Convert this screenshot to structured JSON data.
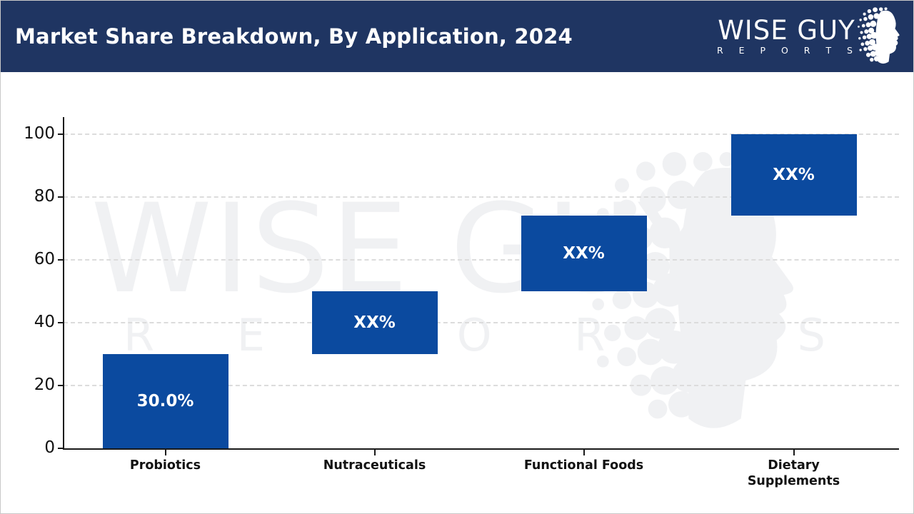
{
  "header": {
    "title": "Market Share Breakdown, By Application, 2024",
    "logo_line1": "WISE GUY",
    "logo_line2": "R E P O R T S"
  },
  "watermark": {
    "line1": "WISE GUY",
    "line2": "R E P O R T S"
  },
  "colors": {
    "header_bg": "#1f3562",
    "bar_blue": "#0b4a9f",
    "bar_label": "#ffffff",
    "watermark_gray": "#f0f1f3",
    "gridline_gray": "#dcdcdc",
    "axis_black": "#1a1a1a"
  },
  "chart_data": {
    "type": "bar",
    "variant": "stacked-waterfall",
    "title": "Market Share Breakdown, By Application, 2024",
    "categories": [
      "Probiotics",
      "Nutraceuticals",
      "Functional Foods",
      "Dietary Supplements"
    ],
    "bars": [
      {
        "category": "Probiotics",
        "start": 0,
        "end": 30,
        "label": "30.0%"
      },
      {
        "category": "Nutraceuticals",
        "start": 30,
        "end": 50,
        "label": "XX%"
      },
      {
        "category": "Functional Foods",
        "start": 50,
        "end": 74,
        "label": "XX%"
      },
      {
        "category": "Dietary Supplements",
        "start": 74,
        "end": 100,
        "label": "XX%"
      }
    ],
    "xlabel": "",
    "ylabel": "",
    "ylim": [
      0,
      105
    ],
    "yticks": [
      0,
      20,
      40,
      60,
      80,
      100
    ],
    "grid": {
      "axis": "y",
      "style": "dashed"
    },
    "legend": "none",
    "bar_color": "#0b4a9f",
    "bar_label_color": "#ffffff"
  }
}
